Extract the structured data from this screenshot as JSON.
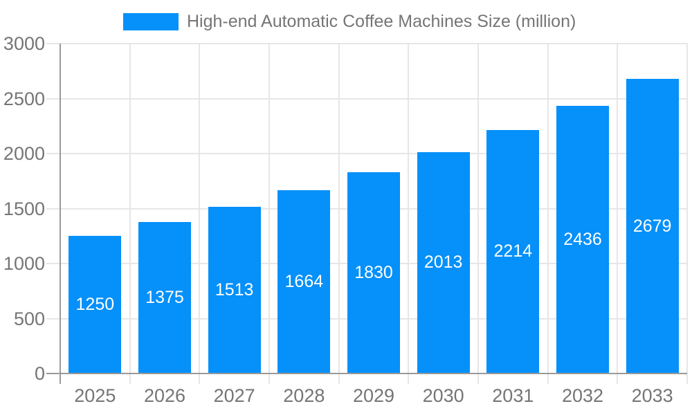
{
  "legend": {
    "label": "High-end Automatic Coffee Machines Size (million)"
  },
  "colors": {
    "bar": "#0590fa",
    "grid": "#e6e6e6",
    "axis": "#999999",
    "tick_label": "#757575",
    "value_label": "#ffffff",
    "background": "#ffffff"
  },
  "chart_data": {
    "type": "bar",
    "categories": [
      "2025",
      "2026",
      "2027",
      "2028",
      "2029",
      "2030",
      "2031",
      "2032",
      "2033"
    ],
    "values": [
      1250,
      1375,
      1513,
      1664,
      1830,
      2013,
      2214,
      2436,
      2679
    ],
    "title": "High-end Automatic Coffee Machines Size (million)",
    "xlabel": "",
    "ylabel": "",
    "ylim": [
      0,
      3000
    ],
    "yticks": [
      0,
      500,
      1000,
      1500,
      2000,
      2500,
      3000
    ],
    "grid": true,
    "legend_position": "top",
    "value_labels": "inside-center",
    "bar_color": "#0590fa"
  }
}
